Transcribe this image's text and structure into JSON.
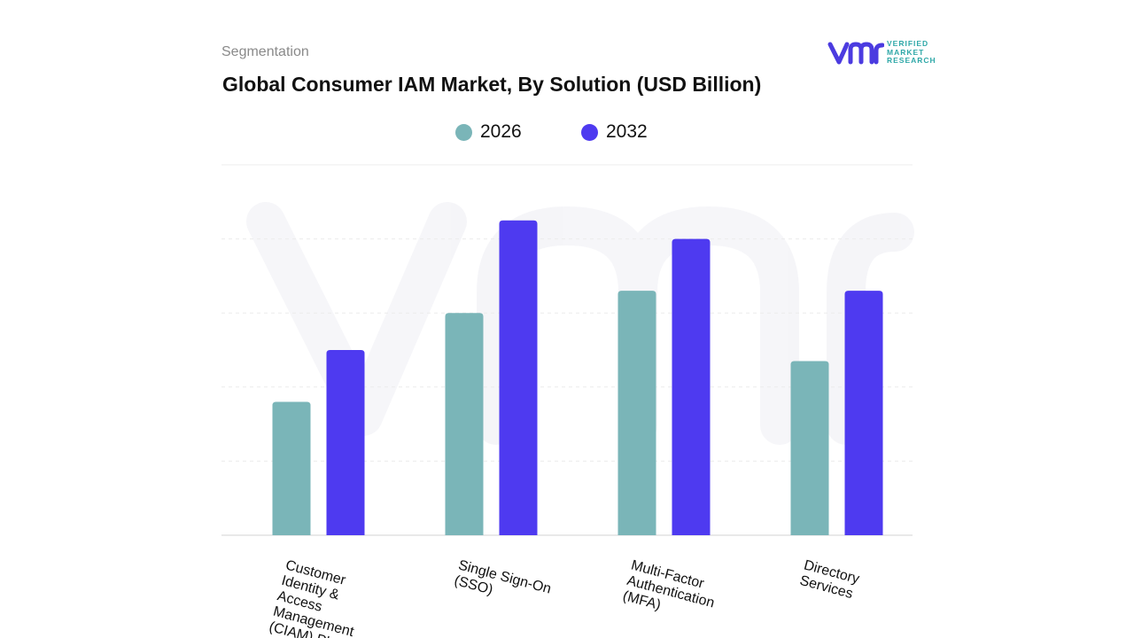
{
  "header": {
    "segment": "Segmentation",
    "title": "Global Consumer IAM Market, By Solution (USD Billion)"
  },
  "logo": {
    "mark_icon": "vmr-logo-icon",
    "line1": "VERIFIED",
    "line2": "MARKET",
    "line3": "RESEARCH",
    "color_mark": "#4b3be0",
    "color_text": "#2fa8a8"
  },
  "chart_data": {
    "type": "bar",
    "title": "Global Consumer IAM Market, By Solution (USD Billion)",
    "xlabel": "",
    "ylabel": "",
    "ylim": [
      0,
      100
    ],
    "grid": true,
    "legend_position": "top-center",
    "categories": [
      "Customer Identity & Access Management (CIAM) Platforms",
      "Single Sign-On (SSO)",
      "Multi-Factor Authentication (MFA)",
      "Directory Services"
    ],
    "category_lines": [
      [
        "Customer",
        "Identity  &",
        "Access",
        "Management",
        "(CIAM) Pl..."
      ],
      [
        "Single Sign-On",
        "(SSO)"
      ],
      [
        "Multi-Factor",
        "Authentication",
        "(MFA)"
      ],
      [
        "Directory",
        "Services"
      ]
    ],
    "series": [
      {
        "name": "2026",
        "color": "#7ab5b8",
        "values": [
          36,
          60,
          66,
          47
        ]
      },
      {
        "name": "2032",
        "color": "#4e3af0",
        "values": [
          50,
          85,
          80,
          66
        ]
      }
    ]
  }
}
